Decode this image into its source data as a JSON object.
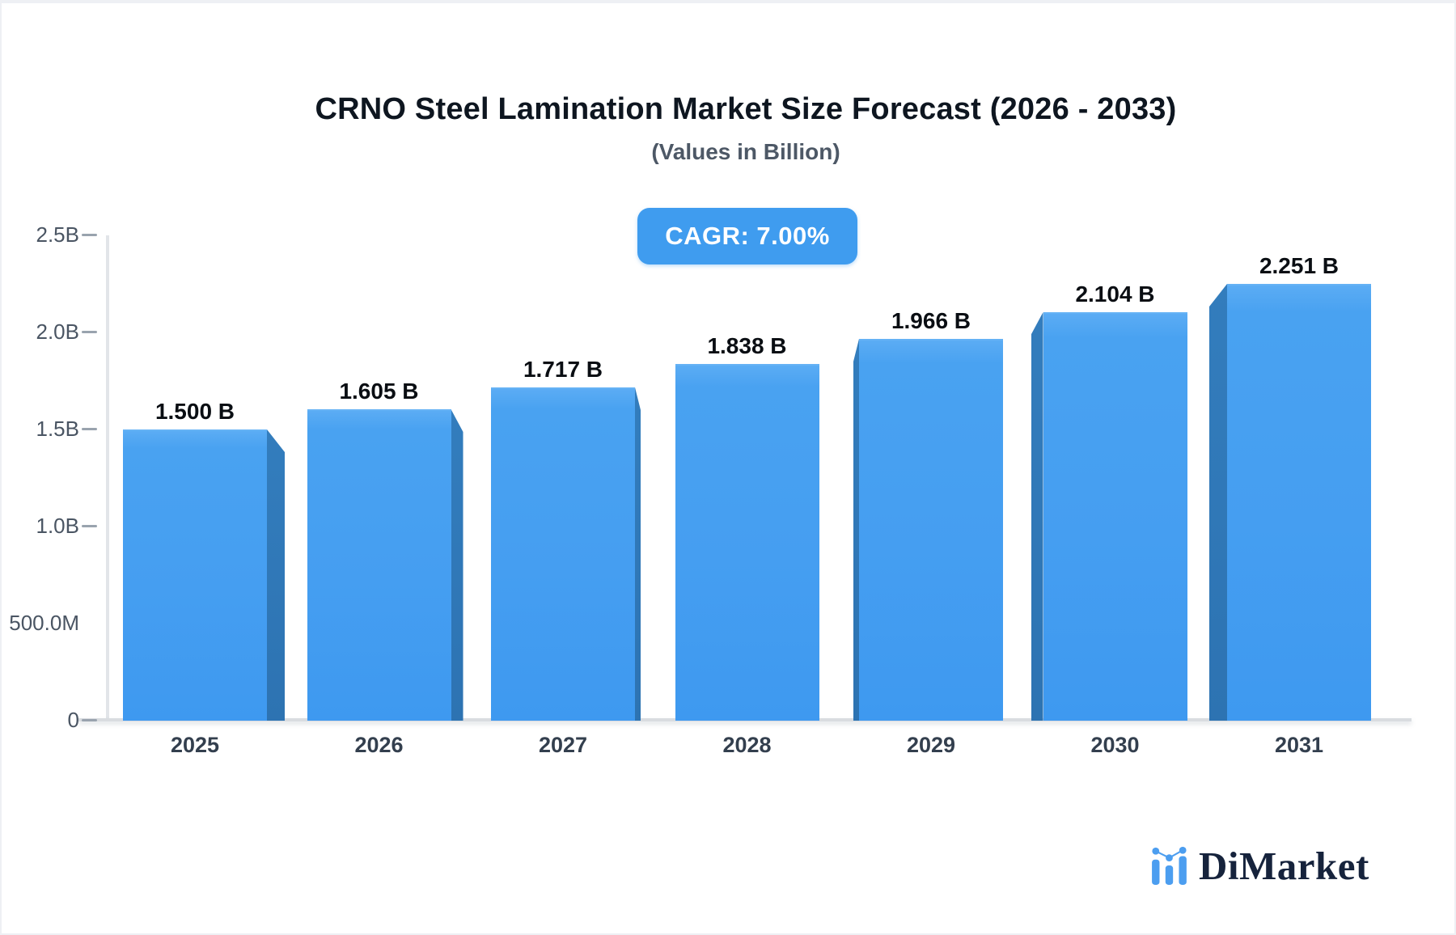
{
  "header": {
    "title": "CRNO Steel Lamination Market Size Forecast (2026 - 2033)",
    "subtitle": "(Values in Billion)"
  },
  "badge": {
    "label": "CAGR: 7.00%"
  },
  "chart_data": {
    "type": "bar",
    "title": "CRNO Steel Lamination Market Size Forecast (2026 - 2033)",
    "subtitle": "(Values in Billion)",
    "categories": [
      "2025",
      "2026",
      "2027",
      "2028",
      "2029",
      "2030",
      "2031"
    ],
    "values": [
      1.5,
      1.605,
      1.717,
      1.838,
      1.966,
      2.104,
      2.251
    ],
    "value_labels": [
      "1.500 B",
      "1.605 B",
      "1.717 B",
      "1.838 B",
      "1.966 B",
      "2.104 B",
      "2.251 B"
    ],
    "unit": "Billion",
    "ylim": [
      0,
      2.5
    ],
    "y_axis": {
      "ticks": [
        {
          "label": "2.5B",
          "value": 2.5,
          "dash": true
        },
        {
          "label": "2.0B",
          "value": 2.0,
          "dash": true
        },
        {
          "label": "1.5B",
          "value": 1.5,
          "dash": true
        },
        {
          "label": "1.0B",
          "value": 1.0,
          "dash": true
        },
        {
          "label": "500.0M",
          "value": 0.5,
          "dash": false
        },
        {
          "label": "0",
          "value": 0.0,
          "dash": true
        }
      ]
    },
    "grid": false,
    "legend": "none",
    "style_3d": true
  },
  "footer": {
    "brand": "DiMarket"
  },
  "colors": {
    "badge_bg": "#3f9cef",
    "bar_face_top": "#5bacf4",
    "bar_face_bottom": "#3e99f0",
    "bar_side": "#2e77b7",
    "axis_line": "#d9dce0",
    "tick": "#99a3ae",
    "title_text": "#0e1620",
    "subtitle_text": "#4d5866",
    "value_text": "#0a0e13",
    "category_text": "#333f4e",
    "logo_navy": "#16233c",
    "logo_blue": "#4c9ef0"
  }
}
